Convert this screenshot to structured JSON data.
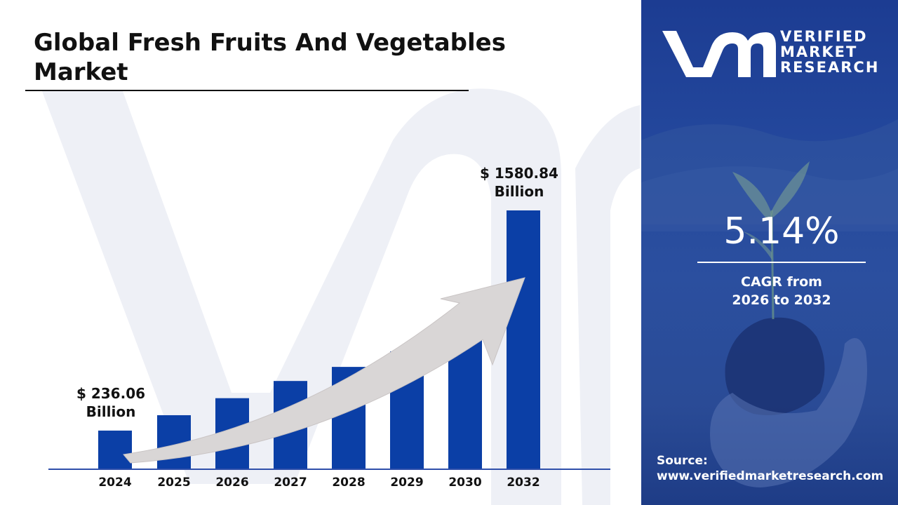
{
  "title": "Global Fresh Fruits And Vegetables Market",
  "colors": {
    "bar": "#0b3fa6",
    "axis": "#2f4faa",
    "panel": "#24489d",
    "text": "#111111",
    "arrow": "#d9d6d6"
  },
  "chart_data": {
    "type": "bar",
    "categories": [
      "2024",
      "2025",
      "2026",
      "2027",
      "2028",
      "2029",
      "2030",
      "2032"
    ],
    "values": [
      236.06,
      330,
      434,
      539,
      625,
      720,
      808,
      1580.84
    ],
    "value_labels": [
      {
        "category": "2024",
        "line1": "$ 236.06",
        "line2": "Billion"
      },
      {
        "category": "2032",
        "line1": "$ 1580.84",
        "line2": "Billion"
      }
    ],
    "ylim": [
      0,
      1580.84
    ],
    "grid": false,
    "trend_arrow": true
  },
  "logo": {
    "line1": "VERIFIED",
    "line2": "MARKET",
    "line3": "RESEARCH"
  },
  "cagr": {
    "value": "5.14%",
    "caption_line1": "CAGR from",
    "caption_line2": "2026 to 2032"
  },
  "source": {
    "label": "Source:",
    "url": "www.verifiedmarketresearch.com"
  }
}
